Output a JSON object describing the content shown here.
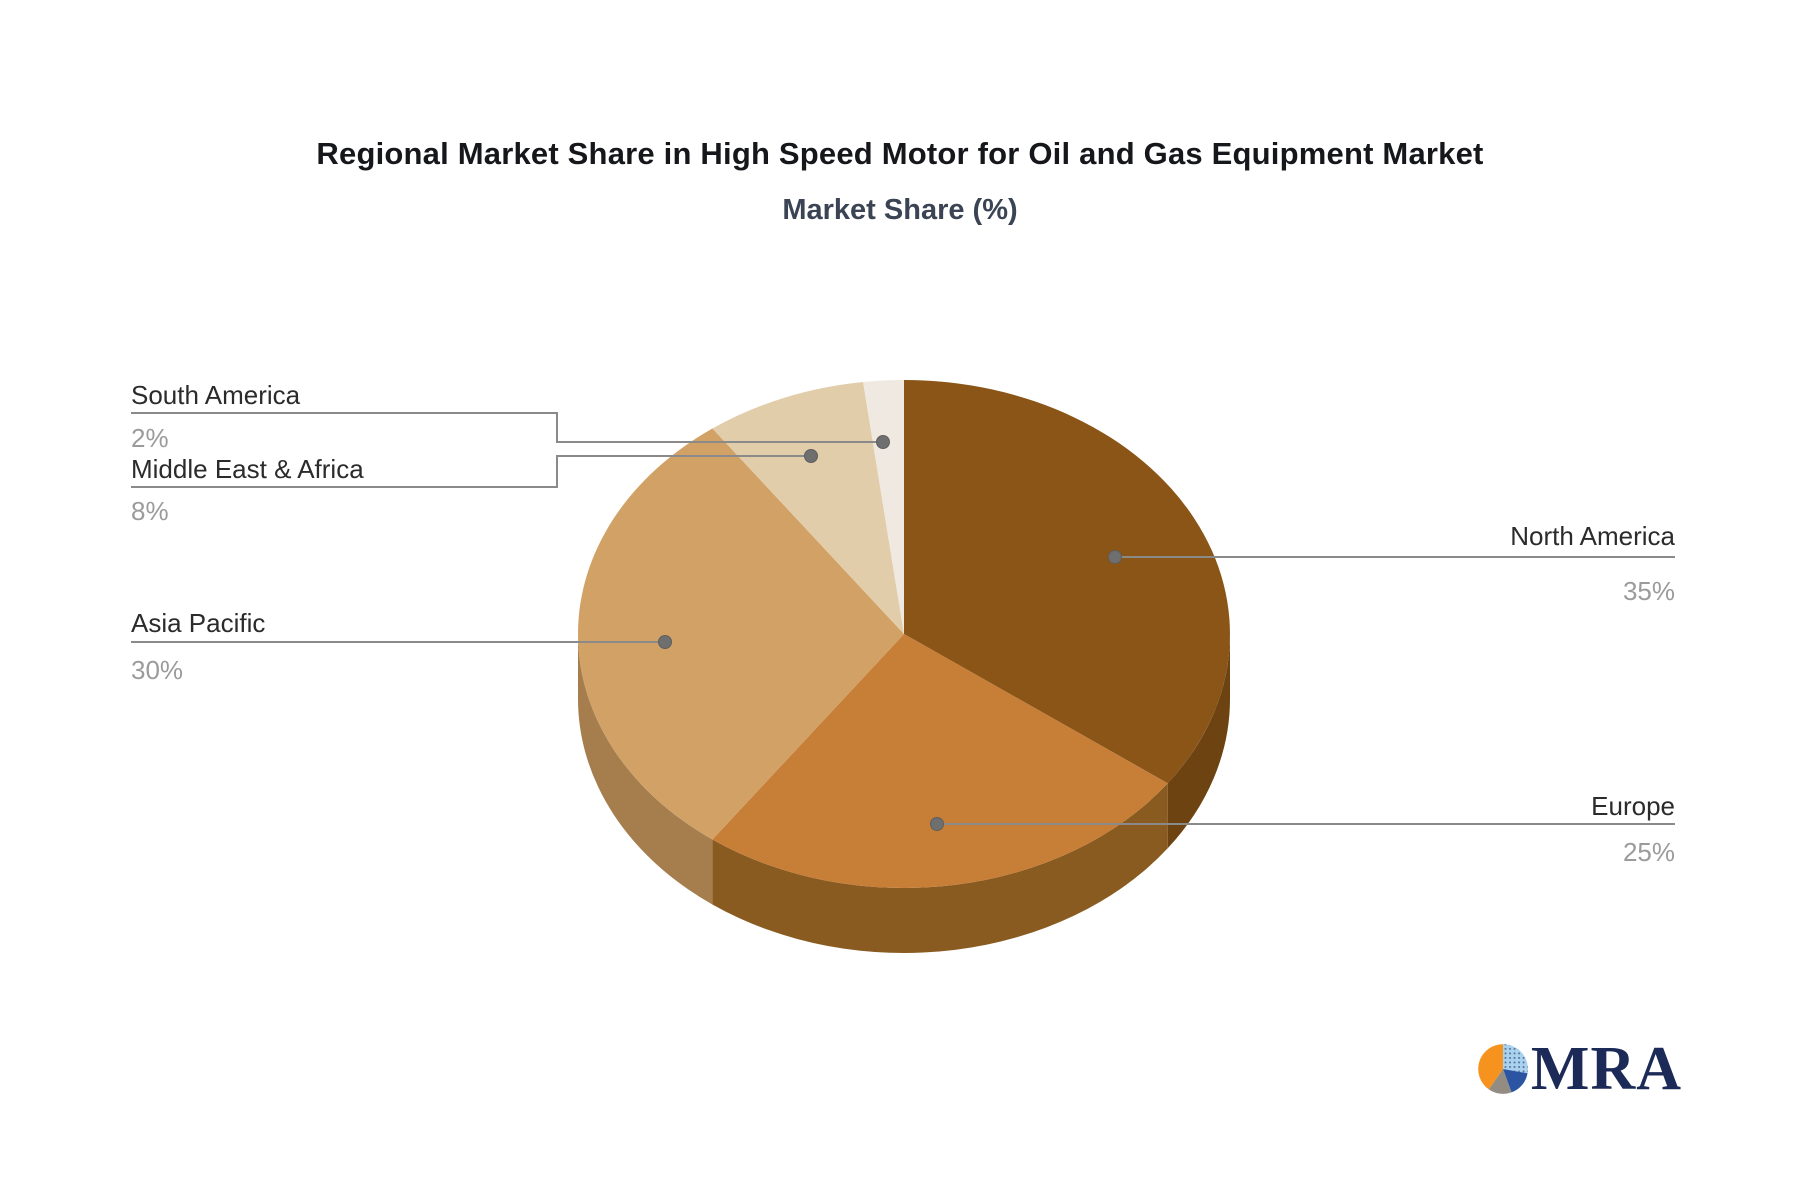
{
  "chart_data": {
    "type": "pie",
    "effect": "3d",
    "title": "Regional Market Share in High Speed Motor for Oil and Gas Equipment Market",
    "subtitle": "Market Share (%)",
    "unit": "%",
    "start_angle_deg": 0,
    "direction": "clockwise",
    "legend_position": "callout-labels",
    "labels": [
      "North America",
      "Europe",
      "Asia Pacific",
      "Middle East & Africa",
      "South America"
    ],
    "values": [
      35,
      25,
      30,
      8,
      2
    ],
    "value_labels": [
      "35%",
      "25%",
      "30%",
      "8%",
      "2%"
    ],
    "colors": [
      "#8A5517",
      "#C77E37",
      "#D2A166",
      "#E2CDAB",
      "#F0E9E1"
    ],
    "side_colors": [
      "#6D4312",
      "#8A5B20",
      "#A67E4E",
      "#B7A488",
      "#C4BCB0"
    ],
    "leader_line_color": "#8a8a8a",
    "label_text_color": "#2b2b2b",
    "value_text_color": "#9b9b9b"
  },
  "branding": {
    "logo_text": "MRA",
    "logo_colors": {
      "orange": "#F6921E",
      "light_blue": "#A9D2EE",
      "dark_blue": "#2B55A2",
      "gray": "#938C83",
      "navy": "#1C2A58"
    }
  }
}
